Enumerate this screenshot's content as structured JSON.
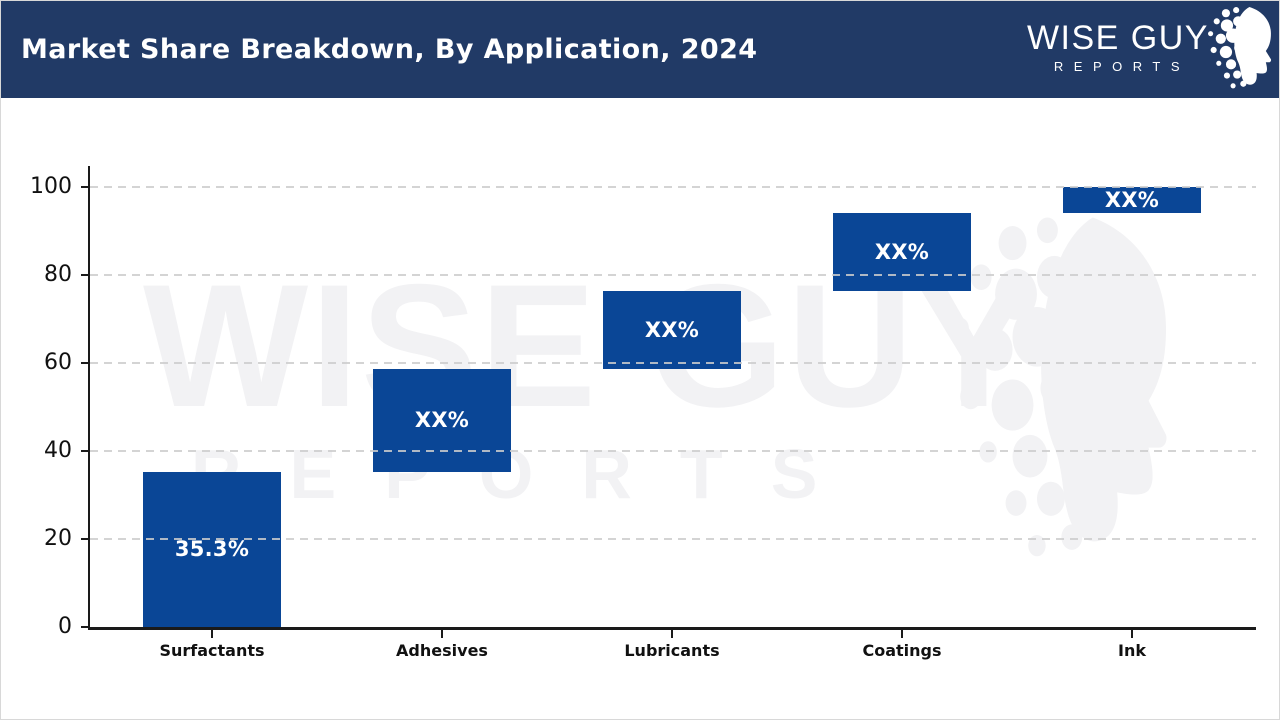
{
  "header": {
    "title": "Market Share Breakdown, By Application, 2024",
    "bg_color": "#213a66",
    "logo": {
      "line1": "WISE GUY",
      "line2": "REPORTS"
    }
  },
  "watermark": {
    "line1": "WISE GUY",
    "line2": "REPORTS"
  },
  "chart_data": {
    "type": "bar",
    "subtype": "waterfall",
    "title": "Market Share Breakdown, By Application, 2024",
    "categories": [
      "Surfactants",
      "Adhesives",
      "Lubricants",
      "Coatings",
      "Ink"
    ],
    "segments": [
      {
        "category": "Surfactants",
        "start": 0,
        "end": 35.3,
        "label": "35.3%"
      },
      {
        "category": "Adhesives",
        "start": 35.3,
        "end": 58.7,
        "label": "XX%"
      },
      {
        "category": "Lubricants",
        "start": 58.7,
        "end": 76.4,
        "label": "XX%"
      },
      {
        "category": "Coatings",
        "start": 76.4,
        "end": 94.0,
        "label": "XX%"
      },
      {
        "category": "Ink",
        "start": 94.0,
        "end": 100,
        "label": "XX%"
      }
    ],
    "yticks": [
      0,
      20,
      40,
      60,
      80,
      100
    ],
    "ylim": [
      0,
      100
    ],
    "xlabel": "",
    "ylabel": "",
    "bar_color": "#0a4696",
    "grid": true,
    "grid_style": "dashed",
    "legend": false
  }
}
